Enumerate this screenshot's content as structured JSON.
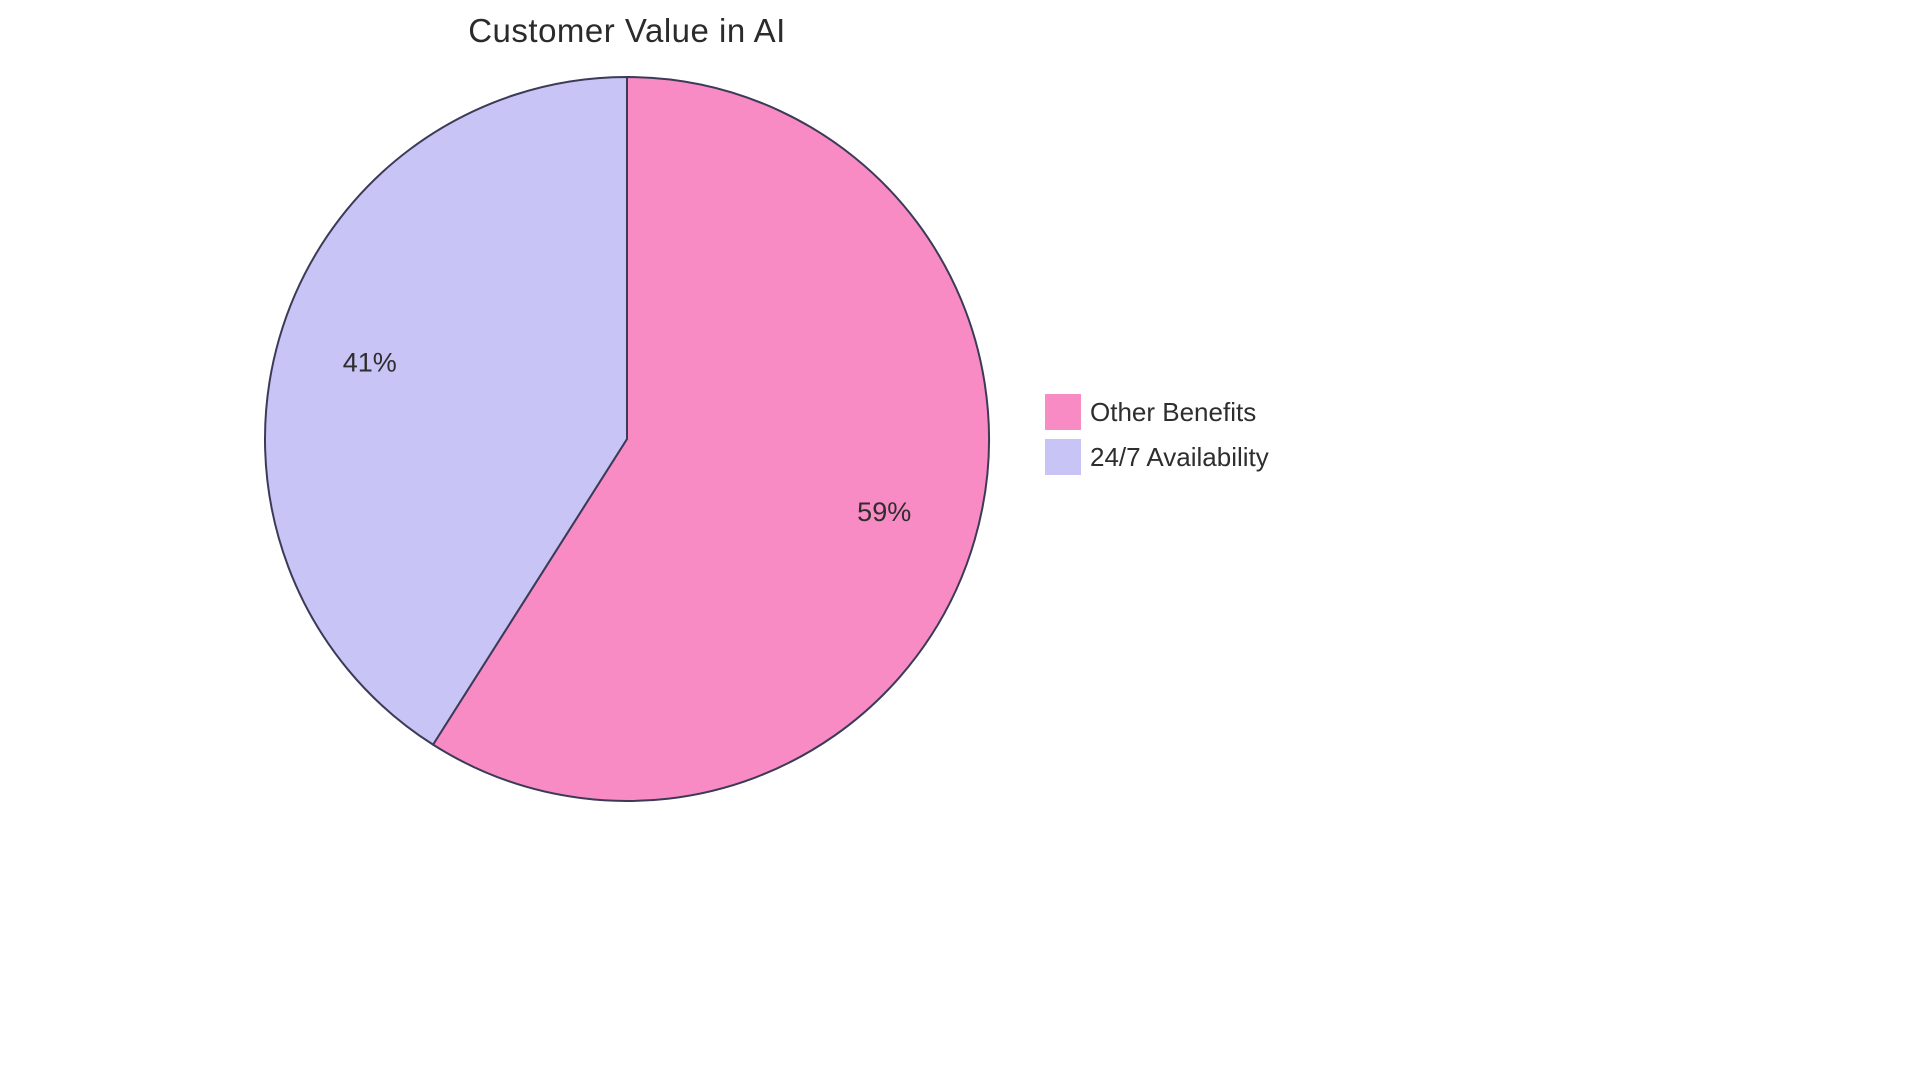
{
  "chart_data": {
    "type": "pie",
    "title": "Customer Value in AI",
    "slices": [
      {
        "label": "Other Benefits",
        "value": 59,
        "text": "59%",
        "color": "#F98BC4"
      },
      {
        "label": "24/7 Availability",
        "value": 41,
        "text": "41%",
        "color": "#C8C4F5"
      }
    ],
    "start_angle_deg": 0,
    "direction": "clockwise",
    "stroke_color": "#3B3B58",
    "stroke_width": 2,
    "legend_position": "right",
    "labels_position": "inside"
  }
}
